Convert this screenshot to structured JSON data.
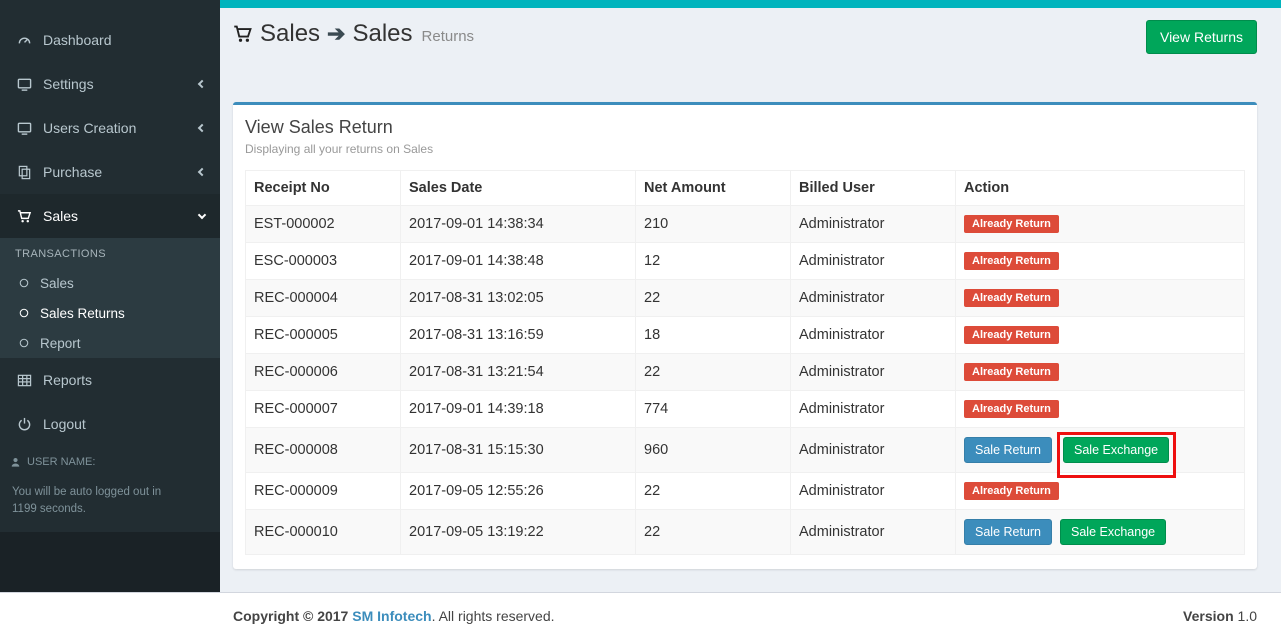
{
  "sidebar": {
    "items": [
      {
        "label": "Dashboard"
      },
      {
        "label": "Settings"
      },
      {
        "label": "Users Creation"
      },
      {
        "label": "Purchase"
      },
      {
        "label": "Sales"
      }
    ],
    "section_label": "TRANSACTIONS",
    "sub_items": [
      {
        "label": "Sales"
      },
      {
        "label": "Sales Returns"
      },
      {
        "label": "Report"
      }
    ],
    "extra_items": [
      {
        "label": "Reports"
      },
      {
        "label": "Logout"
      }
    ],
    "user_label": "USER NAME:",
    "auto_logout_note": "You will be auto logged out in 1199 seconds."
  },
  "header": {
    "title_primary": "Sales",
    "title_secondary": "Sales",
    "title_tertiary": "Returns",
    "view_returns_button": "View Returns"
  },
  "panel": {
    "title": "View Sales Return",
    "subtitle": "Displaying all your returns on Sales",
    "table": {
      "columns": [
        "Receipt No",
        "Sales Date",
        "Net Amount",
        "Billed User",
        "Action"
      ],
      "rows": [
        {
          "receipt": "EST-000002",
          "date": "2017-09-01 14:38:34",
          "amount": "210",
          "user": "Administrator",
          "actions": [
            {
              "kind": "badge",
              "style": "danger",
              "label": "Already Return",
              "name": "already-return-badge"
            }
          ]
        },
        {
          "receipt": "ESC-000003",
          "date": "2017-09-01 14:38:48",
          "amount": "12",
          "user": "Administrator",
          "actions": [
            {
              "kind": "badge",
              "style": "danger",
              "label": "Already Return",
              "name": "already-return-badge"
            }
          ]
        },
        {
          "receipt": "REC-000004",
          "date": "2017-08-31 13:02:05",
          "amount": "22",
          "user": "Administrator",
          "actions": [
            {
              "kind": "badge",
              "style": "danger",
              "label": "Already Return",
              "name": "already-return-badge"
            }
          ]
        },
        {
          "receipt": "REC-000005",
          "date": "2017-08-31 13:16:59",
          "amount": "18",
          "user": "Administrator",
          "actions": [
            {
              "kind": "badge",
              "style": "danger",
              "label": "Already Return",
              "name": "already-return-badge"
            }
          ]
        },
        {
          "receipt": "REC-000006",
          "date": "2017-08-31 13:21:54",
          "amount": "22",
          "user": "Administrator",
          "actions": [
            {
              "kind": "badge",
              "style": "danger",
              "label": "Already Return",
              "name": "already-return-badge"
            }
          ]
        },
        {
          "receipt": "REC-000007",
          "date": "2017-09-01 14:39:18",
          "amount": "774",
          "user": "Administrator",
          "actions": [
            {
              "kind": "badge",
              "style": "danger",
              "label": "Already Return",
              "name": "already-return-badge"
            }
          ]
        },
        {
          "receipt": "REC-000008",
          "date": "2017-08-31 15:15:30",
          "amount": "960",
          "user": "Administrator",
          "actions": [
            {
              "kind": "button",
              "style": "primary",
              "label": "Sale Return",
              "name": "sale-return-button"
            },
            {
              "kind": "button",
              "style": "success",
              "label": "Sale Exchange",
              "name": "sale-exchange-button",
              "highlighted": true
            }
          ]
        },
        {
          "receipt": "REC-000009",
          "date": "2017-09-05 12:55:26",
          "amount": "22",
          "user": "Administrator",
          "actions": [
            {
              "kind": "badge",
              "style": "danger",
              "label": "Already Return",
              "name": "already-return-badge"
            }
          ]
        },
        {
          "receipt": "REC-000010",
          "date": "2017-09-05 13:19:22",
          "amount": "22",
          "user": "Administrator",
          "actions": [
            {
              "kind": "button",
              "style": "primary",
              "label": "Sale Return",
              "name": "sale-return-button"
            },
            {
              "kind": "button",
              "style": "success",
              "label": "Sale Exchange",
              "name": "sale-exchange-button"
            }
          ]
        }
      ]
    }
  },
  "footer": {
    "copyright_prefix": "Copyright © 2017",
    "company": "SM Infotech",
    "copyright_suffix": ". All rights reserved.",
    "version_label": "Version",
    "version_number": "1.0"
  },
  "colors": {
    "accent_teal": "#00b4bd",
    "primary_blue": "#3c8dbc",
    "success_green": "#00a65a",
    "danger_red": "#dd4b39",
    "highlight_red": "#ee0f0f",
    "sidebar_dark": "#222d32",
    "sidebar_darker": "#1a2226",
    "content_bg": "#ecf0f5"
  }
}
